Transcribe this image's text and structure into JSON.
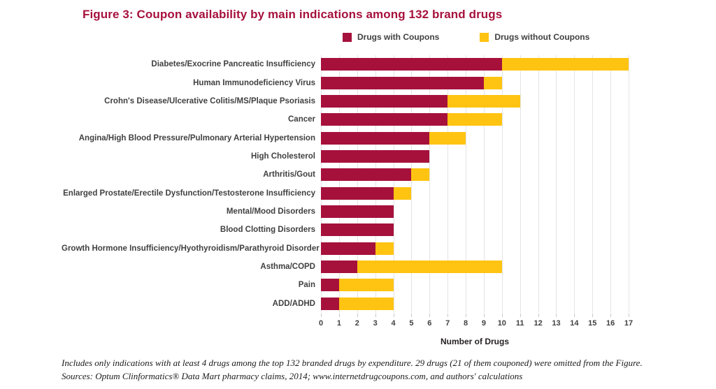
{
  "title": "Figure 3: Coupon availability by main indications among 132 brand drugs",
  "chart_data": {
    "type": "bar",
    "orientation": "horizontal",
    "stacked": true,
    "title": "Figure 3: Coupon availability by main indications among 132 brand drugs",
    "categories": [
      "Diabetes/Exocrine Pancreatic Insufficiency",
      "Human Immunodeficiency Virus",
      "Crohn's Disease/Ulcerative Colitis/MS/Plaque Psoriasis",
      "Cancer",
      "Angina/High Blood Pressure/Pulmonary Arterial Hypertension",
      "High Cholesterol",
      "Arthritis/Gout",
      "Enlarged Prostate/Erectile Dysfunction/Testosterone Insufficiency",
      "Mental/Mood Disorders",
      "Blood Clotting Disorders",
      "Growth Hormone Insufficiency/Hyothyroidism/Parathyroid Disorder",
      "Asthma/COPD",
      "Pain",
      "ADD/ADHD"
    ],
    "series": [
      {
        "name": "Drugs with Coupons",
        "color": "#A6113C",
        "values": [
          10,
          9,
          7,
          7,
          6,
          6,
          5,
          4,
          4,
          4,
          3,
          2,
          1,
          1
        ]
      },
      {
        "name": "Drugs without Coupons",
        "color": "#FFC412",
        "values": [
          7,
          1,
          4,
          3,
          2,
          0,
          1,
          1,
          0,
          0,
          1,
          8,
          3,
          3
        ]
      }
    ],
    "xlabel": "Number of Drugs",
    "xlim": [
      0,
      17
    ],
    "xticks": [
      0,
      1,
      2,
      3,
      4,
      5,
      6,
      7,
      8,
      9,
      10,
      11,
      12,
      13,
      14,
      15,
      16,
      17
    ],
    "grid": true,
    "legend_position": "top"
  },
  "footnotes": {
    "line1": "Includes only indications with at least 4 drugs among the top 132 branded drugs by expenditure. 29 drugs (21 of them couponed) were omitted from the Figure.",
    "line2": "Sources: Optum Clinformatics® Data Mart pharmacy claims, 2014; www.internetdrugcoupons.com, and authors' calculations"
  },
  "colors": {
    "title": "#A6113C",
    "with_coupons": "#A6113C",
    "without_coupons": "#FFC412",
    "gridline": "#E4E4E4",
    "text": "#414042"
  }
}
